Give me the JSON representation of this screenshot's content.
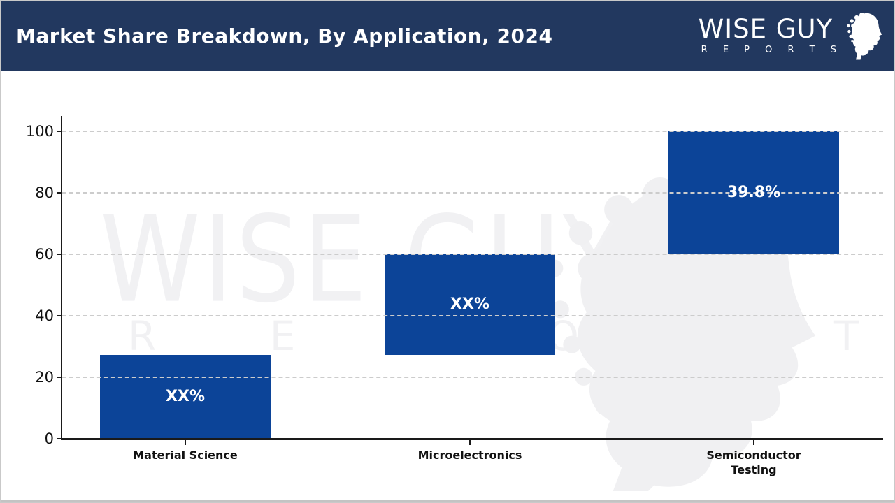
{
  "header": {
    "title": "Market Share Breakdown, By Application, 2024",
    "logo": {
      "line1": "WISE GUY",
      "line2": "R E P O R T S"
    }
  },
  "watermark": {
    "line1": "WISE GUY",
    "line2": "R E P O R T S"
  },
  "colors": {
    "header_bg": "#22385f",
    "bar": "#0c4498",
    "grid": "#cccccc",
    "axis": "#1a1a1a",
    "bar_label_text": "#ffffff",
    "watermark": "#f1f1f3"
  },
  "chart_data": {
    "type": "bar",
    "subtype": "waterfall-floating-bars",
    "title": "Market Share Breakdown, By Application, 2024",
    "categories": [
      "Material Science",
      "Microelectronics",
      "Semiconductor Testing"
    ],
    "series": [
      {
        "name": "Market Share (%)",
        "segments": [
          {
            "category": "Material Science",
            "start": 0,
            "end": 27.3,
            "label": "XX%"
          },
          {
            "category": "Microelectronics",
            "start": 27.3,
            "end": 60.2,
            "label": "XX%"
          },
          {
            "category": "Semiconductor Testing",
            "start": 60.2,
            "end": 100,
            "label": "39.8%"
          }
        ]
      }
    ],
    "xlabel": "",
    "ylabel": "",
    "ylim": [
      0,
      100
    ],
    "yticks": [
      0,
      20,
      40,
      60,
      80,
      100
    ],
    "grid": "horizontal-dashed",
    "legend": "none"
  }
}
